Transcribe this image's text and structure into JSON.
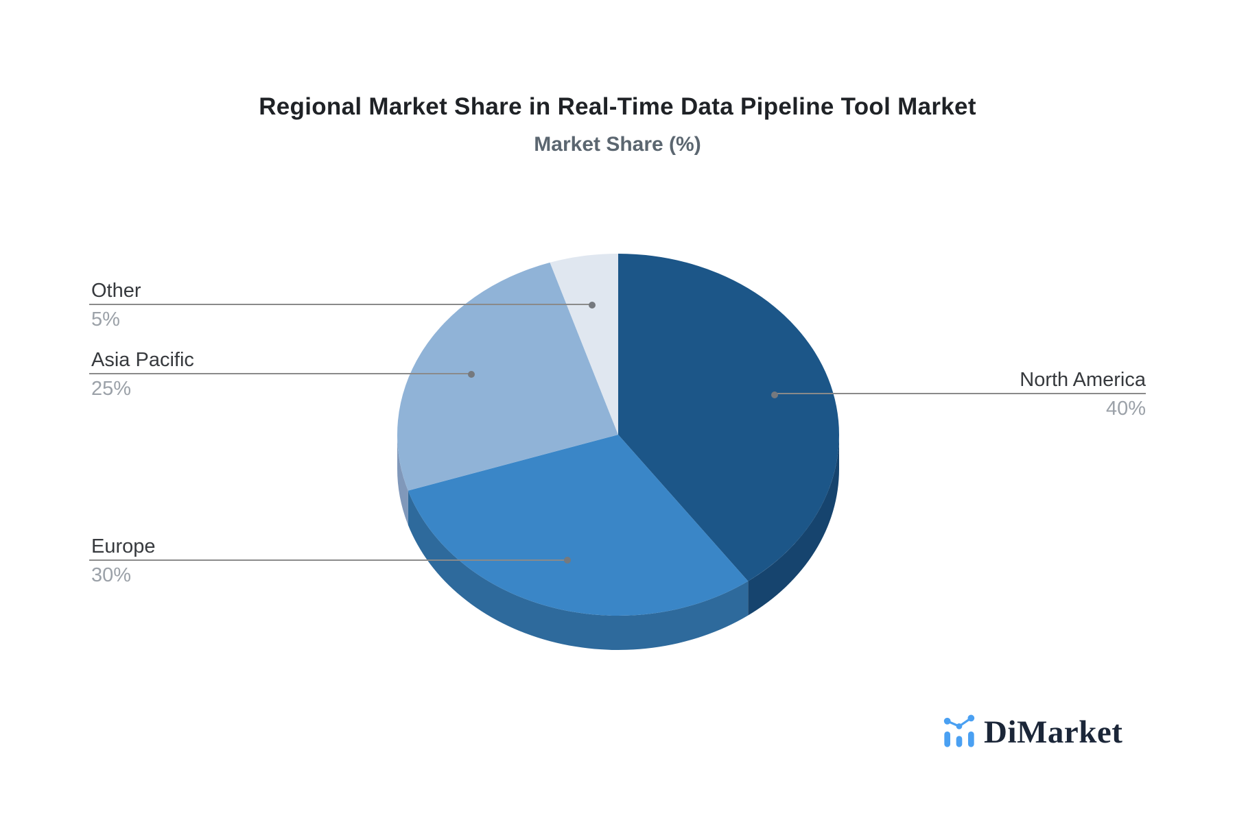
{
  "header": {
    "title": "Regional Market Share in Real-Time Data Pipeline Tool Market",
    "subtitle": "Market Share (%)"
  },
  "chart_data": {
    "type": "pie",
    "title": "Regional Market Share in Real-Time Data Pipeline Tool Market",
    "subtitle": "Market Share (%)",
    "unit": "%",
    "direction": "clockwise",
    "start_angle_deg": 0,
    "effect_3d": true,
    "legend_position": "none",
    "slices": [
      {
        "label": "North America",
        "value": 40,
        "display": "40%",
        "color": "#1c5688",
        "side_color": "#16446e"
      },
      {
        "label": "Europe",
        "value": 30,
        "display": "30%",
        "color": "#3a86c7",
        "side_color": "#2e6a9c"
      },
      {
        "label": "Asia Pacific",
        "value": 25,
        "display": "25%",
        "color": "#90b3d7",
        "side_color": "#8098ba"
      },
      {
        "label": "Other",
        "value": 5,
        "display": "5%",
        "color": "#e0e7f0"
      }
    ],
    "styles": {
      "leader_line_color": "#8a8a8a",
      "leader_dot_color": "#75797e",
      "label_color": "#36393d",
      "value_color": "#9ba1a8",
      "title_color": "#1f2226",
      "subtitle_color": "#5b6670"
    }
  },
  "branding": {
    "logo_text": "DiMarket",
    "logo_icon": "bar-line-chart-icon",
    "logo_text_color": "#1b2638",
    "logo_icon_color": "#4aa0f2"
  }
}
